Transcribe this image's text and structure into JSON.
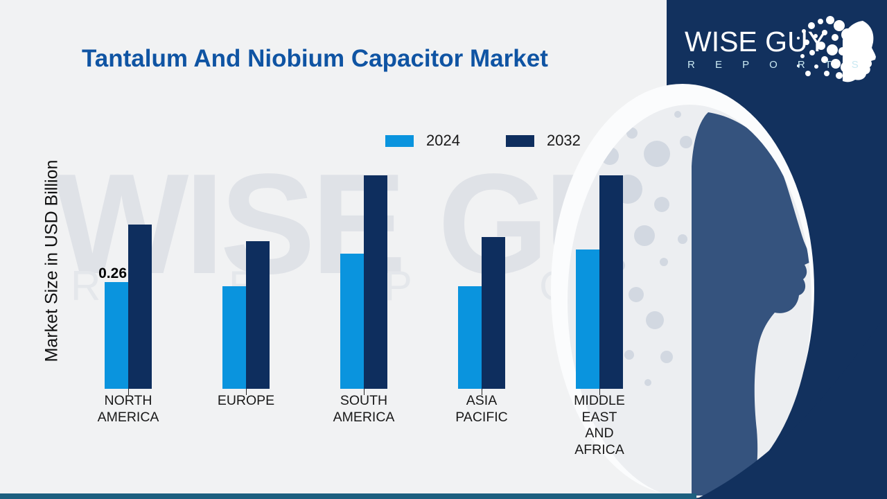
{
  "title": "Tantalum And Niobium Capacitor Market",
  "y_axis_label": "Market Size in USD Billion",
  "watermark": {
    "line1": "WISE GUY",
    "line2": "R E P O R T S"
  },
  "logo": {
    "line1": "WISE GUY",
    "line2": "R E P O R T S"
  },
  "colors": {
    "series_2024": "#0a94de",
    "series_2032": "#0e2e5e",
    "title_blue": "#0f54a3",
    "navy_panel": "#12315e",
    "bottom_bar_teal": "#1d5f7f",
    "background": "#f1f2f3",
    "watermark_gray": "#dfe2e7"
  },
  "chart_data": {
    "type": "bar",
    "title": "Tantalum And Niobium Capacitor Market",
    "xlabel": "",
    "ylabel": "Market Size in USD Billion",
    "ylim": [
      0,
      0.6
    ],
    "grid": false,
    "legend_position": "top-center",
    "categories": [
      "NORTH AMERICA",
      "EUROPE",
      "SOUTH AMERICA",
      "ASIA PACIFIC",
      "MIDDLE EAST AND AFRICA"
    ],
    "category_lines": [
      [
        "NORTH",
        "AMERICA"
      ],
      [
        "EUROPE"
      ],
      [
        "SOUTH",
        "AMERICA"
      ],
      [
        "ASIA",
        "PACIFIC"
      ],
      [
        "MIDDLE",
        "EAST",
        "AND",
        "AFRICA"
      ]
    ],
    "series": [
      {
        "name": "2024",
        "color": "#0a94de",
        "values": [
          0.26,
          0.25,
          0.33,
          0.25,
          0.34
        ]
      },
      {
        "name": "2032",
        "color": "#0e2e5e",
        "values": [
          0.4,
          0.36,
          0.52,
          0.37,
          0.52
        ]
      }
    ],
    "data_labels": [
      {
        "series": "2024",
        "category": "NORTH AMERICA",
        "text": "0.26"
      }
    ]
  }
}
